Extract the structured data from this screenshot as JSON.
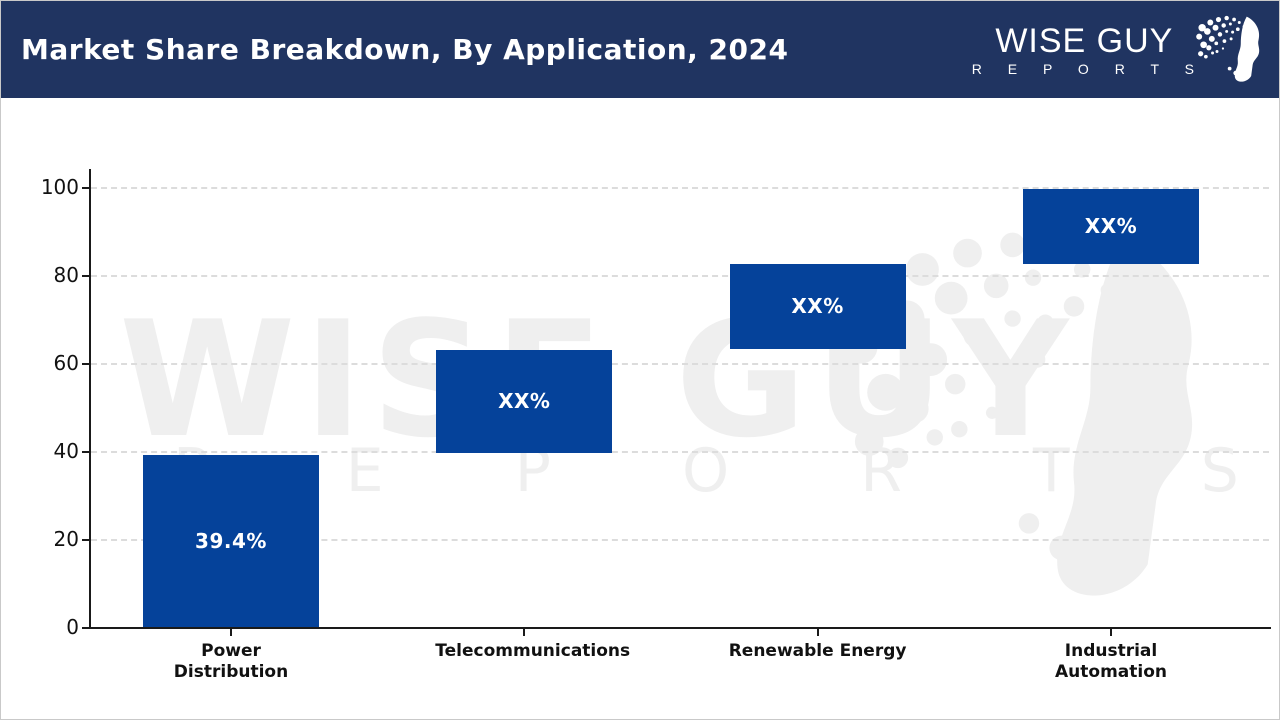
{
  "header": {
    "title": "Market Share Breakdown, By Application, 2024",
    "bg_color": "#203461",
    "brand": {
      "name_top": "WISE GUY",
      "name_bottom": "R E P O R T S"
    }
  },
  "watermark": {
    "line1": "WISE GUY",
    "line2": "R E P O R T S"
  },
  "chart_data": {
    "type": "bar",
    "subtype": "waterfall",
    "title": "Market Share Breakdown, By Application, 2024",
    "categories": [
      "Power Distribution",
      "Telecommunications",
      "Renewable Energy",
      "Industrial Automation"
    ],
    "series": [
      {
        "name": "Market Share",
        "segments": [
          {
            "category": "Power Distribution",
            "start": 0,
            "end": 39.4,
            "label": "39.4%"
          },
          {
            "category": "Telecommunications",
            "start": 39.8,
            "end": 63.2,
            "label": "XX%"
          },
          {
            "category": "Renewable Energy",
            "start": 63.4,
            "end": 82.8,
            "label": "XX%"
          },
          {
            "category": "Industrial Automation",
            "start": 82.8,
            "end": 99.8,
            "label": "XX%"
          }
        ]
      }
    ],
    "yticks": [
      0,
      20,
      40,
      60,
      80,
      100
    ],
    "ylim": [
      0,
      100
    ],
    "xlabel": "",
    "ylabel": "",
    "grid": "horizontal-dashed",
    "legend": "none",
    "bar_color": "#05429a",
    "bar_label_color": "#ffffff",
    "axis_color": "#1a1a1a",
    "grid_color": "#dcdcdc"
  }
}
